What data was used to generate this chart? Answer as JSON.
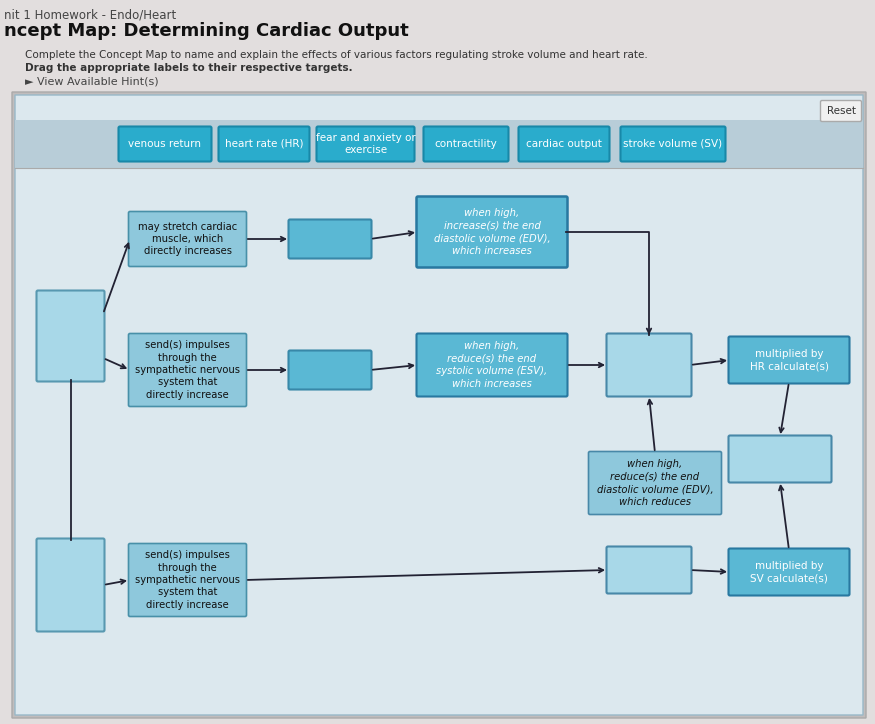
{
  "title_line1": "nit 1 Homework - Endo/Heart",
  "title_line2": "ncept Map: Determining Cardiac Output",
  "subtitle1": "Complete the Concept Map to name and explain the effects of various factors regulating stroke volume and heart rate.",
  "subtitle2": "Drag the appropriate labels to their respective targets.",
  "hint": "► View Available Hint(s)",
  "reset_label": "Reset",
  "bg_page": "#e2dede",
  "bg_outer": "#c8c4c4",
  "bg_inner": "#dce8ee",
  "bg_label_bar": "#b8cdd8",
  "label_bar_color": "#2aaccc",
  "label_bar_items": [
    "venous return",
    "heart rate (HR)",
    "fear and anxiety or\nexercise",
    "contractility",
    "cardiac output",
    "stroke volume (SV)"
  ],
  "box_light": "#8ec8dc",
  "box_mid": "#5ab8d4",
  "box_pale": "#a8d8e8",
  "box_empty_light": "#a0cce0",
  "arrow_color": "#222233",
  "text_dark": "#222222",
  "text_white": "#ffffff",
  "boxes": {
    "desc_row1": "may stretch cardiac\nmuscle, which\ndirectly increases",
    "desc_row2": "send(s) impulses\nthrough the\nsympathetic nervous\nsystem that\ndirectly increase",
    "desc_row3": "send(s) impulses\nthrough the\nsympathetic nervous\nsystem that\ndirectly increase",
    "edv_box": "when high,\nincrease(s) the end\ndiastolic volume (EDV),\nwhich increases",
    "esv_box": "when high,\nreduce(s) the end\nsystolic volume (ESV),\nwhich increases",
    "edv_reduce_box": "when high,\nreduce(s) the end\ndiastolic volume (EDV),\nwhich reduces",
    "mult_hr": "multiplied by\nHR calculate(s)",
    "mult_sv": "multiplied by\nSV calculate(s)"
  }
}
